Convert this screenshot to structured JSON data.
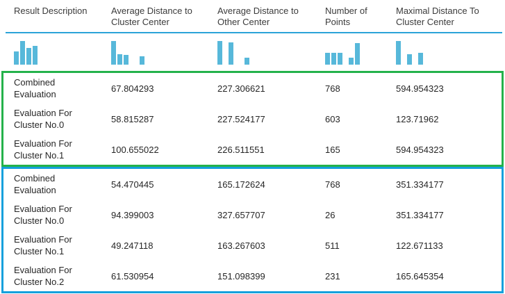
{
  "colors": {
    "histogram_bar": "#57b8da",
    "header_divider": "#2ba3d8",
    "group_1_border": "#24b24b",
    "group_2_border": "#14a0dc"
  },
  "table": {
    "columns": [
      {
        "label": "Result Description"
      },
      {
        "label": "Average Distance to Cluster Center"
      },
      {
        "label": "Average Distance to Other Center"
      },
      {
        "label": "Number of Points"
      },
      {
        "label": "Maximal Distance To Cluster Center"
      }
    ],
    "histograms": [
      {
        "name": "result-description-histogram",
        "bars": [
          0.55,
          1,
          0.7,
          0.8
        ]
      },
      {
        "name": "avg-distance-cluster-center-histogram",
        "bars": [
          1,
          0.45,
          0.4,
          0,
          0,
          0.35
        ]
      },
      {
        "name": "avg-distance-other-center-histogram",
        "bars": [
          1,
          0,
          0.95,
          0,
          0,
          0.3
        ]
      },
      {
        "name": "number-of-points-histogram",
        "bars": [
          0.5,
          0.5,
          0.5,
          0,
          0.3,
          0.9
        ]
      },
      {
        "name": "maximal-distance-cluster-histogram",
        "bars": [
          1,
          0,
          0.45,
          0,
          0.5
        ]
      }
    ],
    "groups": [
      {
        "border_color": "#24b24b",
        "rows": [
          {
            "description": "Combined Evaluation",
            "values": [
              "67.804293",
              "227.306621",
              "768",
              "594.954323"
            ]
          },
          {
            "description": "Evaluation For Cluster No.0",
            "values": [
              "58.815287",
              "227.524177",
              "603",
              "123.71962"
            ]
          },
          {
            "description": "Evaluation For Cluster No.1",
            "values": [
              "100.655022",
              "226.511551",
              "165",
              "594.954323"
            ]
          }
        ]
      },
      {
        "border_color": "#14a0dc",
        "rows": [
          {
            "description": "Combined Evaluation",
            "values": [
              "54.470445",
              "165.172624",
              "768",
              "351.334177"
            ]
          },
          {
            "description": "Evaluation For Cluster No.0",
            "values": [
              "94.399003",
              "327.657707",
              "26",
              "351.334177"
            ]
          },
          {
            "description": "Evaluation For Cluster No.1",
            "values": [
              "49.247118",
              "163.267603",
              "511",
              "122.671133"
            ]
          },
          {
            "description": "Evaluation For Cluster No.2",
            "values": [
              "61.530954",
              "151.098399",
              "231",
              "165.645354"
            ]
          }
        ]
      }
    ]
  }
}
